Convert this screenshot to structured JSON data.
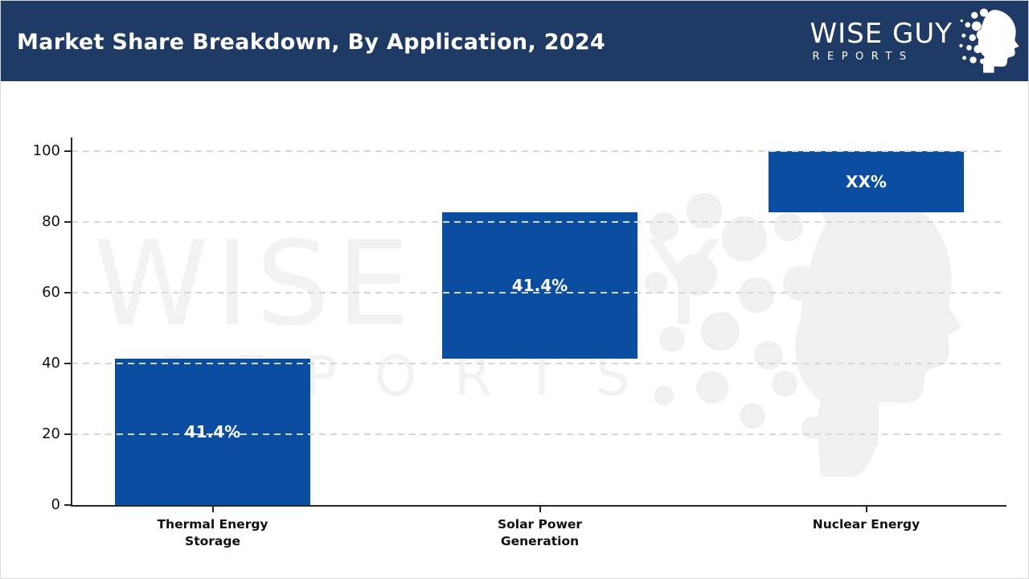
{
  "header": {
    "title": "Market Share Breakdown, By Application, 2024",
    "logo": {
      "line1": "WISE GUY",
      "line2": "REPORTS"
    }
  },
  "watermark": {
    "line1": "WISE GUY",
    "line2": "REPORTS"
  },
  "chart_data": {
    "type": "bar",
    "subtype": "waterfall-stacked-percentage",
    "title": "Market Share Breakdown, By Application, 2024",
    "categories": [
      {
        "name": "Thermal Energy Storage",
        "lines": [
          "Thermal Energy",
          "Storage"
        ]
      },
      {
        "name": "Solar Power Generation",
        "lines": [
          "Solar Power",
          "Generation"
        ]
      },
      {
        "name": "Nuclear Energy",
        "lines": [
          "Nuclear Energy"
        ]
      }
    ],
    "bars": [
      {
        "category": "Thermal Energy Storage",
        "start": 0,
        "end": 41.4,
        "label": "41.4%"
      },
      {
        "category": "Solar Power Generation",
        "start": 41.4,
        "end": 82.8,
        "label": "41.4%"
      },
      {
        "category": "Nuclear Energy",
        "start": 82.8,
        "end": 100,
        "label": "XX%"
      }
    ],
    "ylim": [
      0,
      100
    ],
    "yticks": [
      0,
      20,
      40,
      60,
      80,
      100
    ],
    "grid": "horizontal dashed, drawn above bars",
    "legend": "none",
    "bar_color": "#0b4da1",
    "bar_label_color": "#ffffff"
  },
  "colors": {
    "header_bg": "#203a66",
    "bar": "#0b4da1",
    "grid": "#d7d7d7",
    "axis": "#262626",
    "watermark": "#f2f2f2",
    "title_text": "#ffffff",
    "tick_text": "#111111"
  }
}
